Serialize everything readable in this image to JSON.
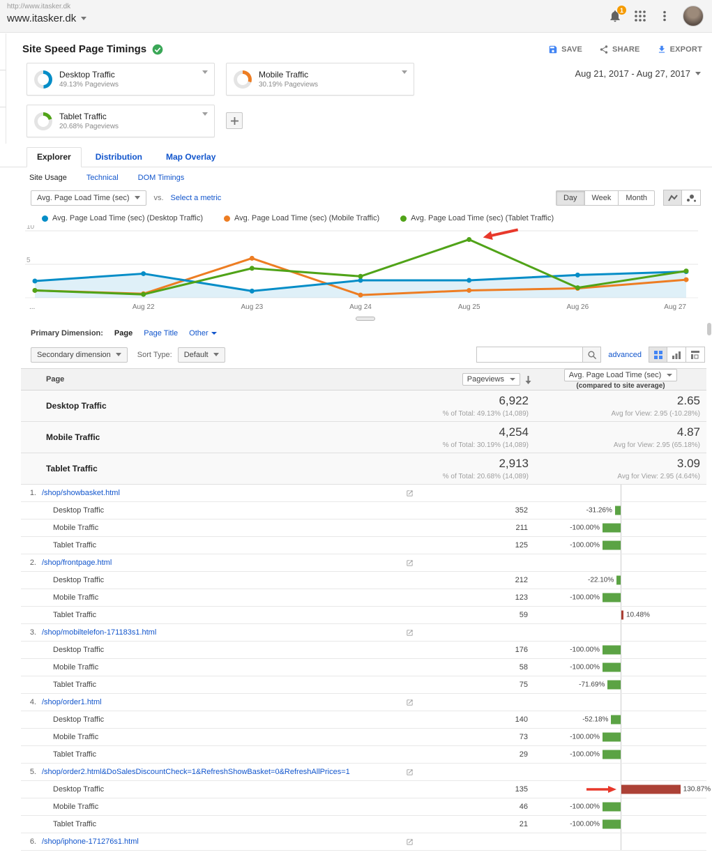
{
  "colors": {
    "link": "#15c",
    "bar_green": "#5ba344",
    "bar_red": "#ac4136",
    "arrow_red": "#e8382b"
  },
  "topbar": {
    "url": "http://www.itasker.dk",
    "account": "www.itasker.dk",
    "notification_count": "1"
  },
  "header": {
    "title": "Site Speed Page Timings",
    "save": "SAVE",
    "share": "SHARE",
    "export": "EXPORT"
  },
  "date_range": "Aug 21, 2017 - Aug 27, 2017",
  "segments": [
    {
      "name": "Desktop Traffic",
      "sub": "49.13% Pageviews",
      "pct": 49.13,
      "color": "#058dc7"
    },
    {
      "name": "Mobile Traffic",
      "sub": "30.19% Pageviews",
      "pct": 30.19,
      "color": "#ed7d23"
    },
    {
      "name": "Tablet Traffic",
      "sub": "20.68% Pageviews",
      "pct": 20.68,
      "color": "#50a318"
    }
  ],
  "tabs": [
    "Explorer",
    "Distribution",
    "Map Overlay"
  ],
  "subtabs": [
    "Site Usage",
    "Technical",
    "DOM Timings"
  ],
  "metric_bar": {
    "metric": "Avg. Page Load Time (sec)",
    "vs": "vs.",
    "select_metric": "Select a metric",
    "granularity": [
      "Day",
      "Week",
      "Month"
    ],
    "active_granularity": "Day"
  },
  "chart_data": {
    "type": "line",
    "x_labels": [
      "...",
      "Aug 22",
      "Aug 23",
      "Aug 24",
      "Aug 25",
      "Aug 26",
      "Aug 27"
    ],
    "ylim": [
      0,
      10
    ],
    "yticks": [
      5,
      10
    ],
    "grid": true,
    "legend_position": "top",
    "series": [
      {
        "name": "Avg. Page Load Time (sec) (Desktop Traffic)",
        "color": "#058dc7",
        "area_fill": true,
        "values": [
          2.5,
          3.6,
          1.0,
          2.6,
          2.6,
          3.4,
          3.9
        ]
      },
      {
        "name": "Avg. Page Load Time (sec) (Mobile Traffic)",
        "color": "#ed7d23",
        "area_fill": false,
        "values": [
          1.1,
          0.6,
          5.9,
          0.4,
          1.1,
          1.4,
          2.7
        ]
      },
      {
        "name": "Avg. Page Load Time (sec) (Tablet Traffic)",
        "color": "#50a318",
        "area_fill": false,
        "values": [
          1.1,
          0.5,
          4.4,
          3.2,
          8.7,
          1.5,
          4.0
        ]
      }
    ],
    "annotation": "red arrow pointing at Tablet Traffic peak on Aug 25"
  },
  "primary_dimension": {
    "label": "Primary Dimension:",
    "selected": "Page",
    "link1": "Page Title",
    "link2": "Other"
  },
  "table_toolbar": {
    "secondary_dimension": "Secondary dimension",
    "sort_type_label": "Sort Type:",
    "sort_type_value": "Default",
    "advanced": "advanced"
  },
  "table": {
    "header": {
      "page": "Page",
      "pageviews": "Pageviews",
      "metric": "Avg. Page Load Time (sec)",
      "metric_sub": "(compared to site average)"
    },
    "summary": [
      {
        "label": "Desktop Traffic",
        "pageviews": "6,922",
        "pv_sub": "% of Total: 49.13% (14,089)",
        "metric": "2.65",
        "metric_sub": "Avg for View: 2.95 (-10.28%)"
      },
      {
        "label": "Mobile Traffic",
        "pageviews": "4,254",
        "pv_sub": "% of Total: 30.19% (14,089)",
        "metric": "4.87",
        "metric_sub": "Avg for View: 2.95 (65.18%)"
      },
      {
        "label": "Tablet Traffic",
        "pageviews": "2,913",
        "pv_sub": "% of Total: 20.68% (14,089)",
        "metric": "3.09",
        "metric_sub": "Avg for View: 2.95 (4.64%)"
      }
    ],
    "rows": [
      {
        "index": "1.",
        "page": "/shop/showbasket.html",
        "segments": [
          {
            "label": "Desktop Traffic",
            "pageviews": "352",
            "pct": "-31.26%",
            "value": -31.26
          },
          {
            "label": "Mobile Traffic",
            "pageviews": "211",
            "pct": "-100.00%",
            "value": -100
          },
          {
            "label": "Tablet Traffic",
            "pageviews": "125",
            "pct": "-100.00%",
            "value": -100
          }
        ]
      },
      {
        "index": "2.",
        "page": "/shop/frontpage.html",
        "segments": [
          {
            "label": "Desktop Traffic",
            "pageviews": "212",
            "pct": "-22.10%",
            "value": -22.1
          },
          {
            "label": "Mobile Traffic",
            "pageviews": "123",
            "pct": "-100.00%",
            "value": -100
          },
          {
            "label": "Tablet Traffic",
            "pageviews": "59",
            "pct": "10.48%",
            "value": 10.48
          }
        ]
      },
      {
        "index": "3.",
        "page": "/shop/mobiltelefon-171183s1.html",
        "segments": [
          {
            "label": "Desktop Traffic",
            "pageviews": "176",
            "pct": "-100.00%",
            "value": -100
          },
          {
            "label": "Mobile Traffic",
            "pageviews": "58",
            "pct": "-100.00%",
            "value": -100
          },
          {
            "label": "Tablet Traffic",
            "pageviews": "75",
            "pct": "-71.69%",
            "value": -71.69
          }
        ]
      },
      {
        "index": "4.",
        "page": "/shop/order1.html",
        "segments": [
          {
            "label": "Desktop Traffic",
            "pageviews": "140",
            "pct": "-52.18%",
            "value": -52.18
          },
          {
            "label": "Mobile Traffic",
            "pageviews": "73",
            "pct": "-100.00%",
            "value": -100
          },
          {
            "label": "Tablet Traffic",
            "pageviews": "29",
            "pct": "-100.00%",
            "value": -100
          }
        ]
      },
      {
        "index": "5.",
        "page": "/shop/order2.html&DoSalesDiscountCheck=1&RefreshShowBasket=0&RefreshAllPrices=1",
        "segments": [
          {
            "label": "Desktop Traffic",
            "pageviews": "135",
            "pct": "130.87%",
            "value": 130.87,
            "arrow": true
          },
          {
            "label": "Mobile Traffic",
            "pageviews": "46",
            "pct": "-100.00%",
            "value": -100
          },
          {
            "label": "Tablet Traffic",
            "pageviews": "21",
            "pct": "-100.00%",
            "value": -100
          }
        ]
      },
      {
        "index": "6.",
        "page": "/shop/iphone-171276s1.html",
        "segments": []
      }
    ]
  }
}
